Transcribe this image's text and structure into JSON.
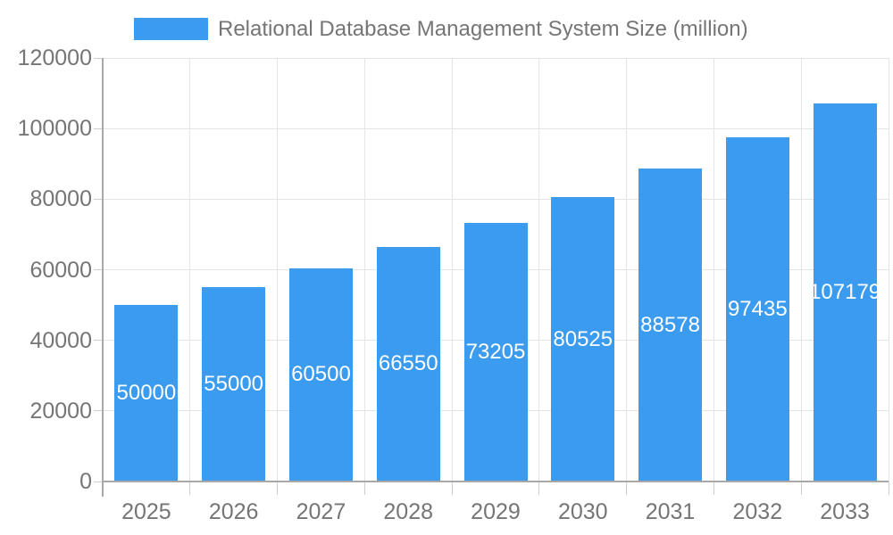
{
  "chart_data": {
    "type": "bar",
    "title": "Relational Database Management System Size (million)",
    "categories": [
      "2025",
      "2026",
      "2027",
      "2028",
      "2029",
      "2030",
      "2031",
      "2032",
      "2033"
    ],
    "values": [
      50000,
      55000,
      60500,
      66550,
      73205,
      80525,
      88578,
      97435,
      107179
    ],
    "value_labels": [
      "50000",
      "55000",
      "60500",
      "66550",
      "73205",
      "80525",
      "88578",
      "97435",
      "107179"
    ],
    "xlabel": "",
    "ylabel": "",
    "ylim": [
      0,
      120000
    ],
    "yticks": [
      0,
      20000,
      40000,
      60000,
      80000,
      100000,
      120000
    ],
    "grid": true,
    "legend_position": "top-left",
    "value_label_position": "inside-middle",
    "colors": {
      "bar": "#3B9BEF",
      "grid": "#E4E4E4",
      "axis": "#A8A8A8",
      "tick": "#CCCCCC",
      "text": "#757575",
      "value_label": "#FFFFFF",
      "background": "#FFFFFF"
    }
  }
}
